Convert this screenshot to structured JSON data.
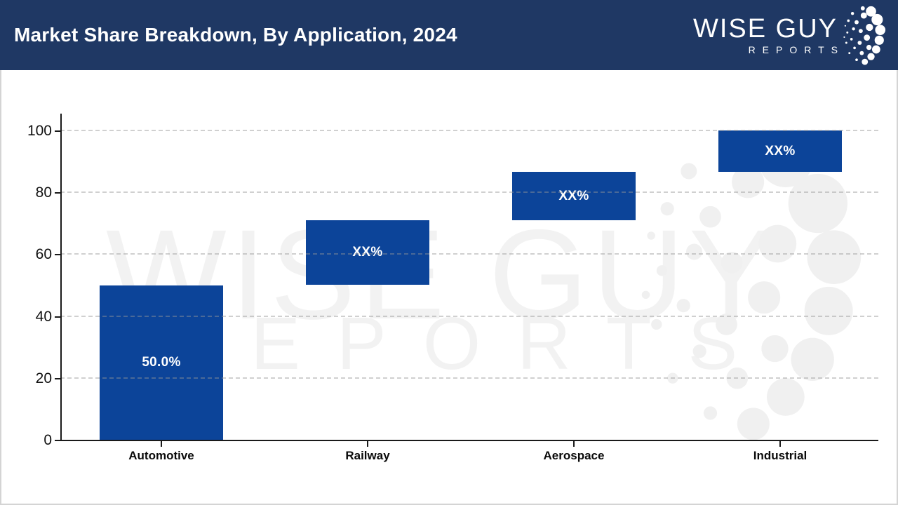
{
  "header": {
    "title": "Market Share Breakdown, By Application, 2024",
    "bg_color": "#1f3864",
    "logo": {
      "line1": "WISE GUY",
      "line2": "REPORTS"
    }
  },
  "watermark": {
    "line1": "WISE GUY",
    "line2": "REPORTS"
  },
  "chart_data": {
    "type": "bar",
    "subtype": "waterfall",
    "title": "Market Share Breakdown, By Application, 2024",
    "categories": [
      "Automotive",
      "Railway",
      "Aerospace",
      "Industrial"
    ],
    "segments": [
      {
        "category": "Automotive",
        "start": 0,
        "end": 50.0,
        "label": "50.0%"
      },
      {
        "category": "Railway",
        "start": 50.0,
        "end": 70.9,
        "label": "XX%"
      },
      {
        "category": "Aerospace",
        "start": 70.9,
        "end": 86.6,
        "label": "XX%"
      },
      {
        "category": "Industrial",
        "start": 86.6,
        "end": 100.0,
        "label": "XX%"
      }
    ],
    "y_ticks": [
      0,
      20,
      40,
      60,
      80,
      100
    ],
    "ylim": [
      0,
      100
    ],
    "xlabel": "",
    "ylabel": "",
    "bar_color": "#0c4499",
    "grid": "horizontal-dashed",
    "legend": "none"
  }
}
